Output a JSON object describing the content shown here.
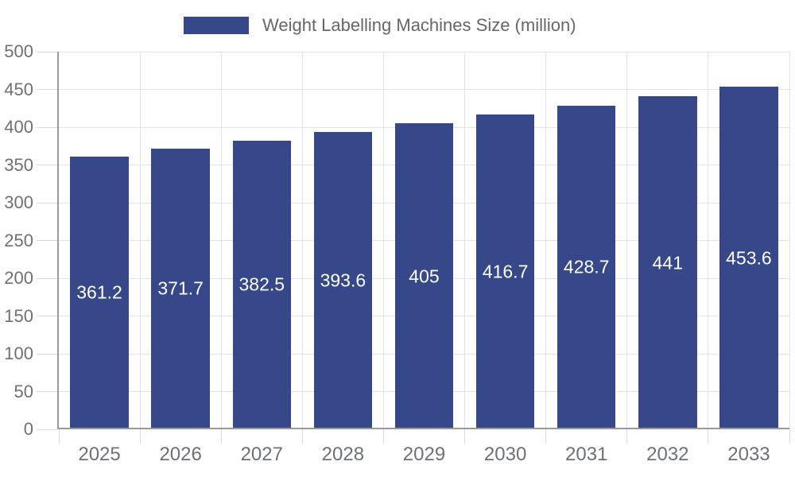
{
  "chart_data": {
    "type": "bar",
    "title": "Weight Labelling Machines Size (million)",
    "legend": [
      "Weight Labelling Machines Size (million)"
    ],
    "legend_position": "top",
    "categories": [
      "2025",
      "2026",
      "2027",
      "2028",
      "2029",
      "2030",
      "2031",
      "2032",
      "2033"
    ],
    "series": [
      {
        "name": "Weight Labelling Machines Size (million)",
        "values": [
          361.2,
          371.7,
          382.5,
          393.6,
          405,
          416.7,
          428.7,
          441,
          453.6
        ]
      }
    ],
    "xlabel": "",
    "ylabel": "",
    "ylim": [
      0,
      500
    ],
    "ytick_step": 50,
    "yticks": [
      0,
      50,
      100,
      150,
      200,
      250,
      300,
      350,
      400,
      450,
      500
    ],
    "grid": true,
    "bar_value_labels_shown": true,
    "colors": {
      "bar": "#36488a",
      "bar_label": "#ffffff",
      "axis_line": "#999999",
      "grid_line": "#e2e2e8",
      "tick_line": "#d9d9e0",
      "axis_label": "#6e7079",
      "legend_text": "#666666",
      "background": "#ffffff"
    }
  }
}
